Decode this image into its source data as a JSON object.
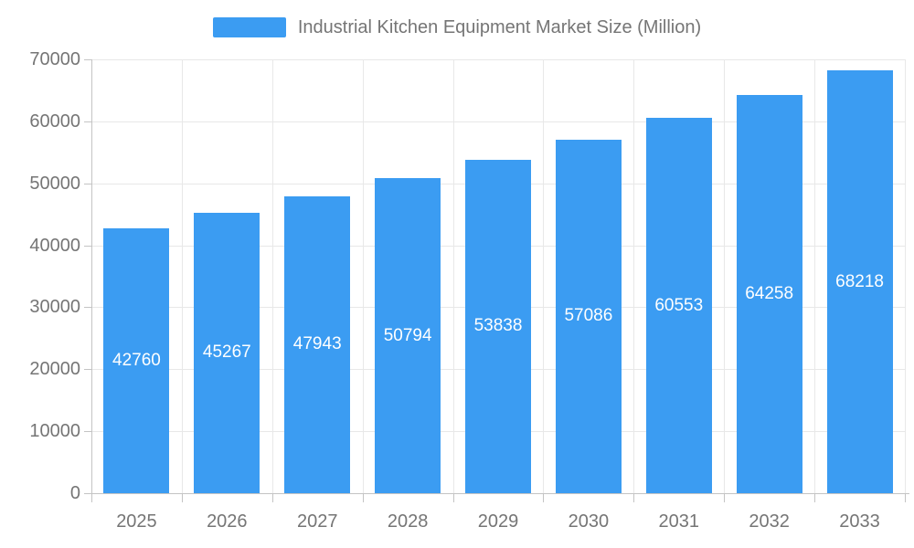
{
  "page": {
    "background": "#ffffff"
  },
  "legend": {
    "label": "Industrial Kitchen Equipment Market Size (Million)"
  },
  "chart_data": {
    "type": "bar",
    "title": "Industrial Kitchen Equipment Market Size (Million)",
    "series_name": "Industrial Kitchen Equipment Market Size (Million)",
    "categories": [
      "2025",
      "2026",
      "2027",
      "2028",
      "2029",
      "2030",
      "2031",
      "2032",
      "2033"
    ],
    "values": [
      42760,
      45267,
      47943,
      50794,
      53838,
      57086,
      60553,
      64258,
      68218
    ],
    "xlabel": "",
    "ylabel": "",
    "ylim": [
      0,
      70000
    ],
    "yticks": [
      0,
      10000,
      20000,
      30000,
      40000,
      50000,
      60000,
      70000
    ],
    "grid": true,
    "legend_position": "top-center",
    "value_label_position": "inside-center",
    "colors": {
      "bar": "#3B9CF2",
      "value_text": "#ffffff",
      "axis_line": "#C4C4C4",
      "grid_line": "#E8E8E8",
      "tick_text": "#757575",
      "legend_text": "#757575"
    }
  }
}
